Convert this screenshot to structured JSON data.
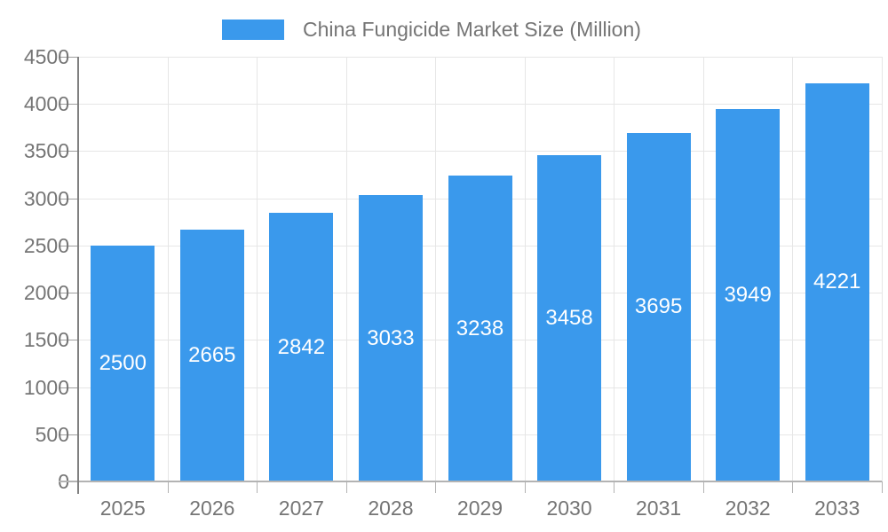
{
  "chart_data": {
    "type": "bar",
    "title": "China Fungicide Market Size (Million)",
    "categories": [
      "2025",
      "2026",
      "2027",
      "2028",
      "2029",
      "2030",
      "2031",
      "2032",
      "2033"
    ],
    "values": [
      2500,
      2665,
      2842,
      3033,
      3238,
      3458,
      3695,
      3949,
      4221
    ],
    "xlabel": "",
    "ylabel": "",
    "ylim": [
      0,
      4500
    ],
    "yticks": [
      0,
      500,
      1000,
      1500,
      2000,
      2500,
      3000,
      3500,
      4000,
      4500
    ],
    "grid": true,
    "legend_position": "top-center",
    "bar_color": "#3a99ec",
    "bar_label_color": "#ffffff",
    "axis_text_color": "#757575",
    "grid_color": "#e6e6e6",
    "xaxis_line_color": "#b3b3b3",
    "yaxis_line_color": "#808080",
    "ytick_stub_color": "#9e9e9e",
    "background_color": "#ffffff"
  }
}
